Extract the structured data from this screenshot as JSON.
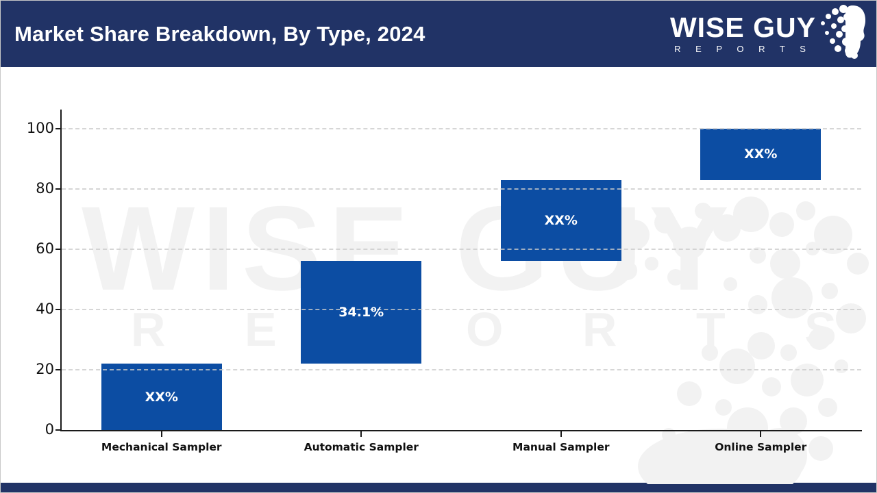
{
  "header": {
    "title": "Market Share Breakdown, By Type, 2024",
    "logo": {
      "brand_line1": "WISE GUY",
      "brand_line2": "R E P O R T S"
    }
  },
  "watermark": {
    "line1": "WISE GUY",
    "line2": "R E P O R T S"
  },
  "chart_data": {
    "type": "bar",
    "variant": "floating-waterfall",
    "title": "Market Share Breakdown, By Type, 2024",
    "categories": [
      "Mechanical Sampler",
      "Automatic Sampler",
      "Manual Sampler",
      "Online Sampler"
    ],
    "series": [
      {
        "name": "Market share (%)",
        "segments": [
          {
            "category": "Mechanical Sampler",
            "start": 0,
            "end": 22,
            "value_label": "XX%"
          },
          {
            "category": "Automatic Sampler",
            "start": 22,
            "end": 56.1,
            "value_label": "34.1%"
          },
          {
            "category": "Manual Sampler",
            "start": 56.1,
            "end": 83,
            "value_label": "XX%"
          },
          {
            "category": "Online Sampler",
            "start": 83,
            "end": 100,
            "value_label": "XX%"
          }
        ]
      }
    ],
    "ylim": [
      0,
      105
    ],
    "yticks": [
      0,
      20,
      40,
      60,
      80,
      100
    ],
    "grid": "horizontal dashed",
    "legend": "none"
  },
  "colors": {
    "header_bg": "#213366",
    "footer_bg": "#213366",
    "bar": "#0c4da3",
    "bar_label": "#ffffff",
    "grid": "#cbcbcb",
    "axis": "#1a1a1a",
    "watermark": "#f2f2f2"
  }
}
